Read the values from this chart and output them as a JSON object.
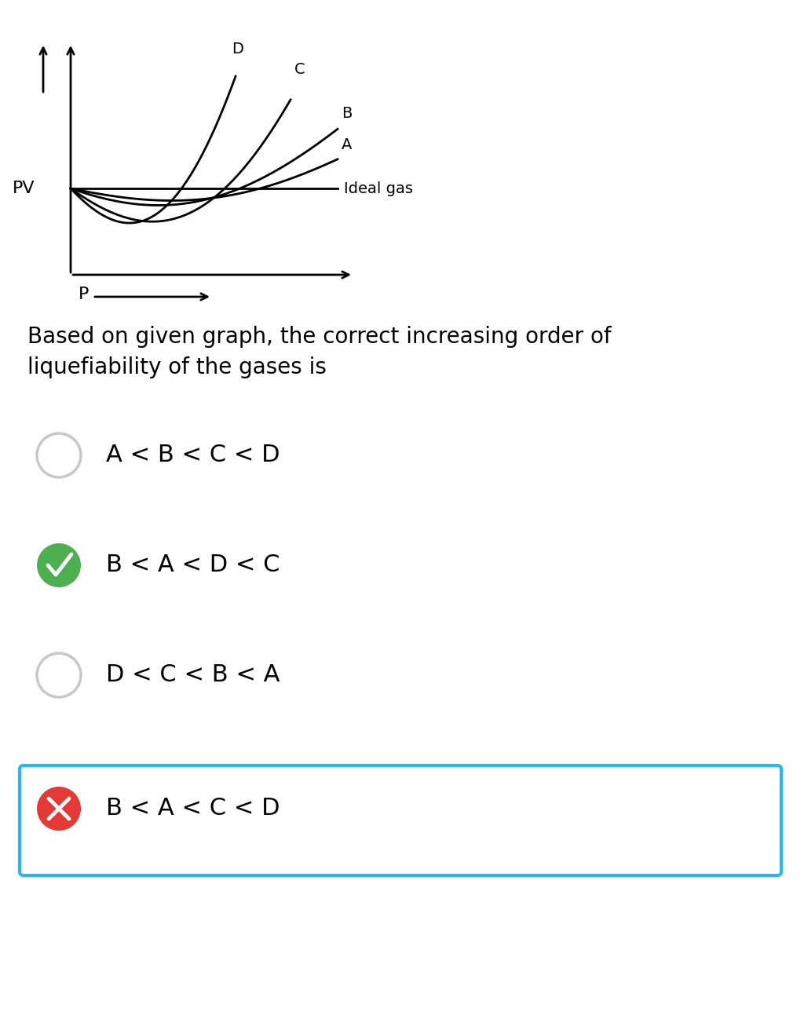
{
  "background_color": "#ffffff",
  "pv_label": "PV",
  "p_label": "P",
  "ideal_gas_label": "Ideal gas",
  "question_text": "Based on given graph, the correct increasing order of\nliquefiability of the gases is",
  "question_fontsize": 20,
  "options": [
    {
      "text": "A < B < C < D",
      "type": "radio_empty"
    },
    {
      "text": "B < A < D < C",
      "type": "radio_check"
    },
    {
      "text": "D < C < B < A",
      "type": "radio_empty"
    },
    {
      "text": "B < A < C < D",
      "type": "radio_cross"
    }
  ],
  "option_fontsize": 22,
  "correct_color": "#4caf50",
  "wrong_color": "#e53935",
  "border_color": "#29b6f6",
  "radio_color": "#c8c8c8",
  "text_color": "#000000"
}
